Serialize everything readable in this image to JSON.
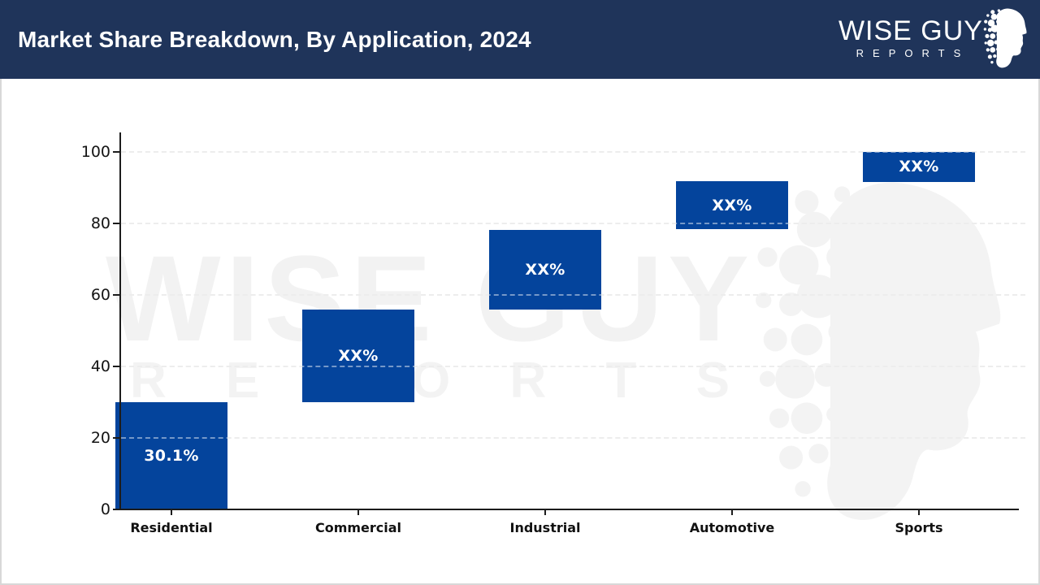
{
  "header": {
    "title": "Market Share Breakdown, By Application, 2024",
    "background": "#1f345a",
    "logo": {
      "brand": "WISE GUY",
      "sub": "REPORTS"
    }
  },
  "watermark": {
    "brand": "WISE GUY",
    "sub": "R E P O R T S"
  },
  "chart_data": {
    "type": "bar",
    "subtype": "floating-waterfall",
    "title": "Market Share Breakdown, By Application, 2024",
    "categories": [
      "Residential",
      "Commercial",
      "Industrial",
      "Automotive",
      "Sports"
    ],
    "segments": [
      {
        "category": "Residential",
        "start": 0,
        "end": 30.1,
        "label": "30.1%"
      },
      {
        "category": "Commercial",
        "start": 30.1,
        "end": 56.0,
        "label": "XX%"
      },
      {
        "category": "Industrial",
        "start": 56.0,
        "end": 78.2,
        "label": "XX%"
      },
      {
        "category": "Automotive",
        "start": 78.3,
        "end": 91.8,
        "label": "XX%"
      },
      {
        "category": "Sports",
        "start": 91.7,
        "end": 100.0,
        "label": "XX%"
      }
    ],
    "xlabel": "",
    "ylabel": "",
    "ylim": [
      0,
      105
    ],
    "yticks": [
      0,
      20,
      40,
      60,
      80,
      100
    ],
    "grid": "horizontal-dashed",
    "legend": "none",
    "bar_color": "#04449c",
    "bar_label_color": "#ffffff",
    "axis_color": "#1c1c1c"
  }
}
